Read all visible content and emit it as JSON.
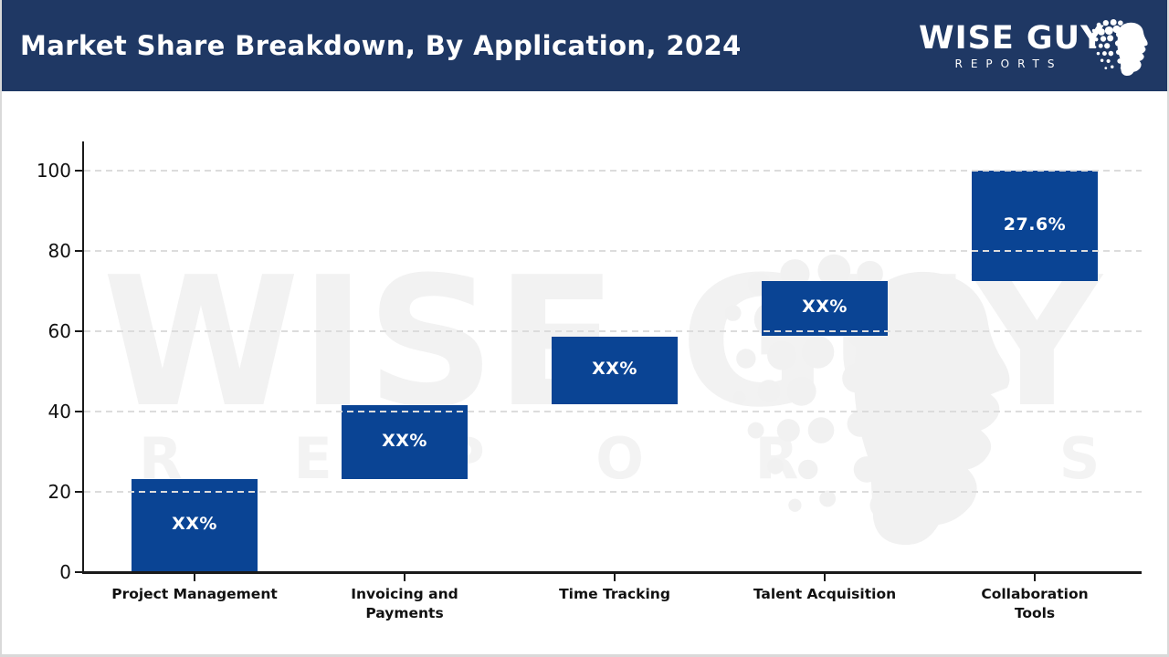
{
  "header": {
    "title": "Market Share Breakdown, By Application, 2024",
    "logo": {
      "brand": "WISE GUY",
      "sub": "REPORTS",
      "face_icon": "dotted-head-profile"
    }
  },
  "watermark": {
    "brand": "WISE GUY",
    "sub": "R E P O R T S",
    "face_icon": "dotted-head-profile"
  },
  "colors": {
    "header_bg": "#1f3864",
    "bar": "#0a4494",
    "bar_label": "#ffffff",
    "axis": "#1a1a1a",
    "grid": "#dcdcdc",
    "watermark": "#f2f2f2"
  },
  "chart_data": {
    "type": "bar",
    "subtype": "waterfall-floating-bars",
    "title": "Market Share Breakdown, By Application, 2024",
    "xlabel": "",
    "ylabel": "",
    "ylim": [
      0,
      100
    ],
    "yticks": [
      0,
      20,
      40,
      60,
      80,
      100
    ],
    "grid": true,
    "grid_style": "dashed-horizontal",
    "legend": "none",
    "bar_color": "#0a4494",
    "bar_label_color": "#ffffff",
    "categories": [
      "Project Management",
      "Invoicing and Payments",
      "Time Tracking",
      "Talent Acquisition",
      "Collaboration Tools"
    ],
    "bars": [
      {
        "category": "Project Management",
        "label_lines": [
          "Project Management"
        ],
        "start": 0,
        "end": 23.2,
        "label": "XX%"
      },
      {
        "category": "Invoicing and Payments",
        "label_lines": [
          "Invoicing and",
          "Payments"
        ],
        "start": 23.2,
        "end": 41.5,
        "label": "XX%"
      },
      {
        "category": "Time Tracking",
        "label_lines": [
          "Time Tracking"
        ],
        "start": 41.8,
        "end": 58.6,
        "label": "XX%"
      },
      {
        "category": "Talent Acquisition",
        "label_lines": [
          "Talent Acquisition"
        ],
        "start": 58.9,
        "end": 72.4,
        "label": "XX%"
      },
      {
        "category": "Collaboration Tools",
        "label_lines": [
          "Collaboration",
          "Tools"
        ],
        "start": 72.4,
        "end": 100,
        "label": "27.6%"
      }
    ]
  }
}
